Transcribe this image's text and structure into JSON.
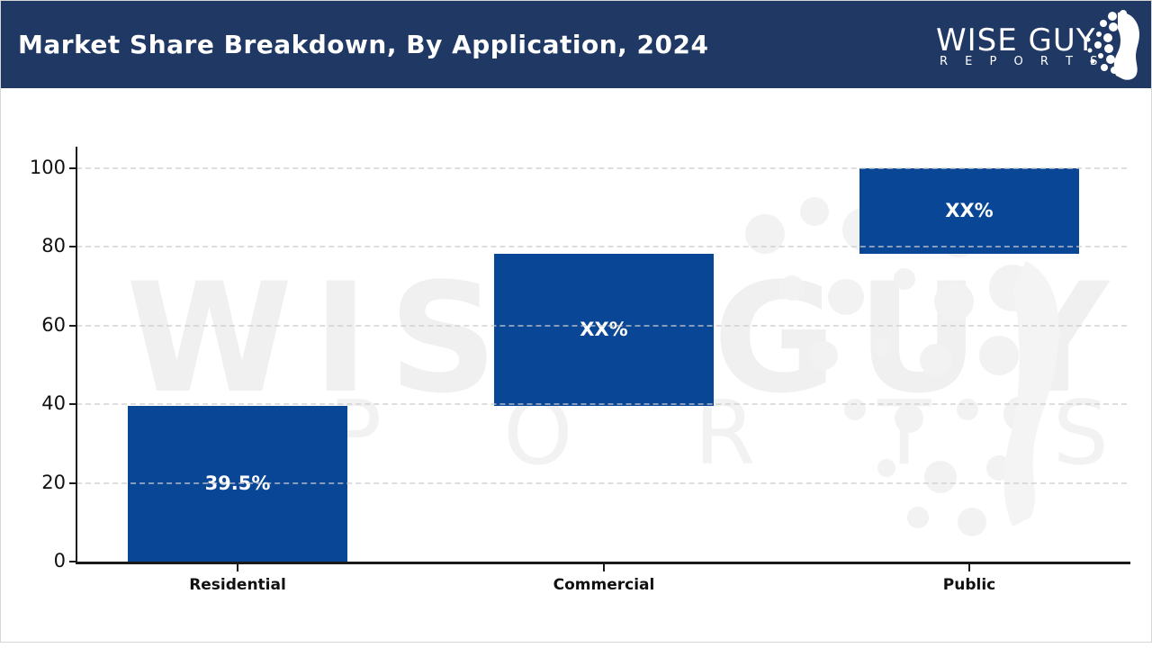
{
  "header": {
    "title": "Market Share Breakdown, By Application, 2024",
    "bg_color": "#1f3864",
    "logo": {
      "line1": "WISE GUY",
      "line2": "R E P O R T S"
    }
  },
  "watermark": {
    "line1": "WISE GUY",
    "line2": "P O R T S"
  },
  "chart_data": {
    "type": "bar",
    "subtype": "waterfall-stacked",
    "title": "Market Share Breakdown, By Application, 2024",
    "categories": [
      "Residential",
      "Commercial",
      "Public"
    ],
    "segments": [
      {
        "category": "Residential",
        "start": 0,
        "end": 39.5,
        "label": "39.5%"
      },
      {
        "category": "Commercial",
        "start": 39.5,
        "end": 78.2,
        "label": "XX%"
      },
      {
        "category": "Public",
        "start": 78.2,
        "end": 100,
        "label": "XX%"
      }
    ],
    "ylim": [
      0,
      100
    ],
    "yticks": [
      0,
      20,
      40,
      60,
      80,
      100
    ],
    "grid": "horizontal-dashed",
    "bar_color": "#0a4696",
    "bar_label_color": "#ffffff",
    "axis_color": "#1a1a1a"
  }
}
